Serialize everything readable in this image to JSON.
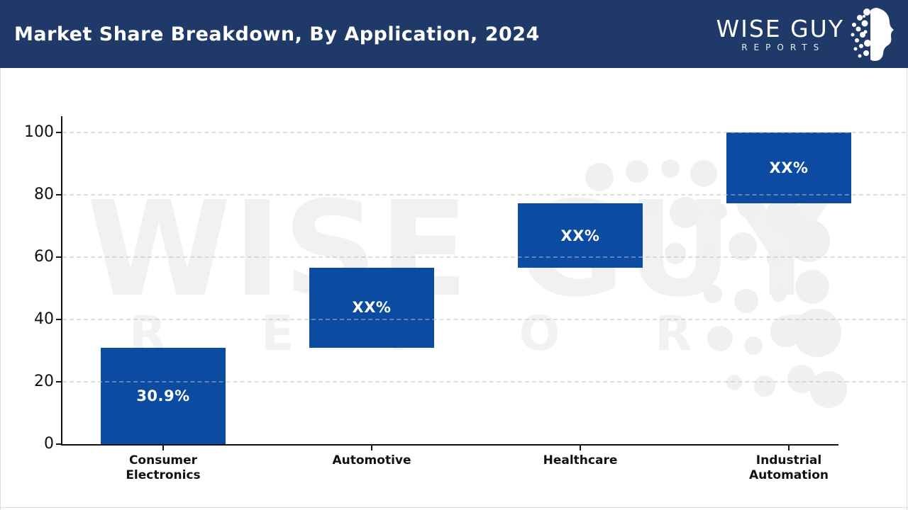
{
  "header": {
    "title": "Market Share Breakdown, By Application, 2024",
    "logo": {
      "line1": "WISE GUY",
      "line2": "REPORTS"
    }
  },
  "watermark": {
    "line1": "WISE GUY",
    "line2": "R E P O R T S"
  },
  "chart_data": {
    "type": "bar",
    "subtype": "waterfall",
    "title": "Market Share Breakdown, By Application, 2024",
    "categories": [
      "Consumer Electronics",
      "Automotive",
      "Healthcare",
      "Industrial Automation"
    ],
    "segments": [
      {
        "category": "Consumer Electronics",
        "start": 0,
        "end": 30.9,
        "label": "30.9%"
      },
      {
        "category": "Automotive",
        "start": 30.9,
        "end": 56.6,
        "label": "XX%"
      },
      {
        "category": "Healthcare",
        "start": 56.6,
        "end": 77.2,
        "label": "XX%"
      },
      {
        "category": "Industrial Automation",
        "start": 77.2,
        "end": 100,
        "label": "XX%"
      }
    ],
    "ylim": [
      0,
      100
    ],
    "yticks": [
      0,
      20,
      40,
      60,
      80,
      100
    ],
    "grid": {
      "axis": "y",
      "style": "dashed",
      "color": "#d9d9d9",
      "drawn_over_bars": true
    },
    "legend": "none",
    "colors": {
      "bar": "#0b4ba1",
      "header_bg": "#1f3969",
      "axis": "#111111"
    }
  }
}
